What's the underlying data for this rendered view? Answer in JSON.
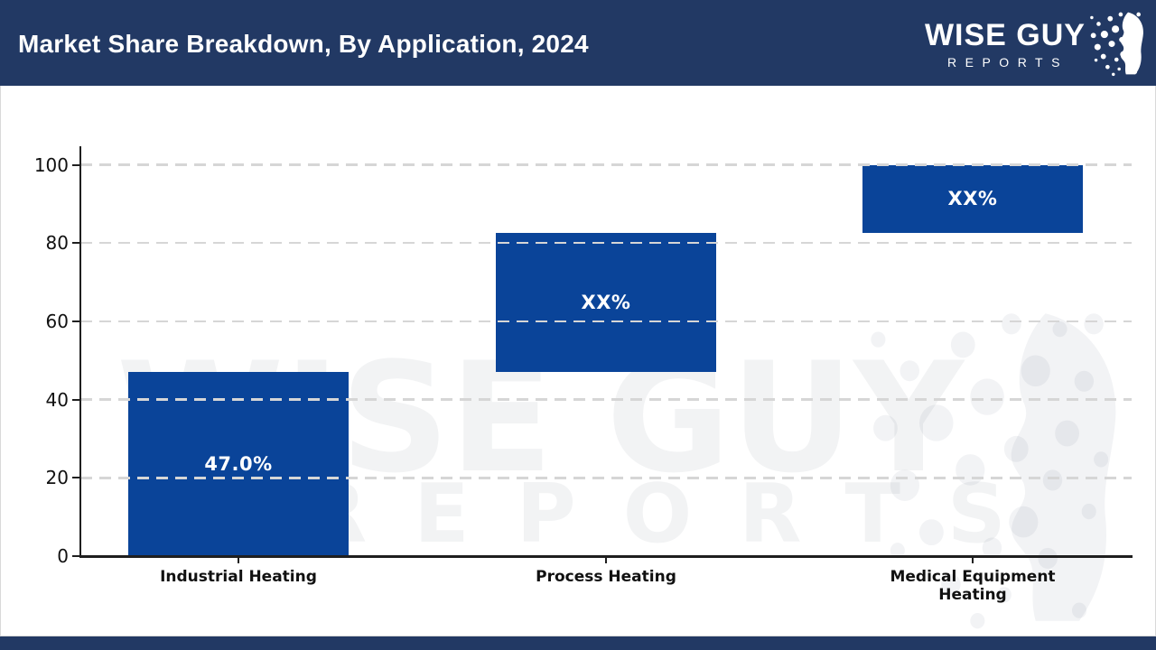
{
  "header": {
    "title": "Market Share Breakdown, By Application, 2024",
    "logo": {
      "name": "WISE GUY",
      "sub": "REPORTS"
    }
  },
  "watermark": {
    "large": "WISE GUY",
    "small": "REPORTS"
  },
  "colors": {
    "header_bg": "#223964",
    "footer_bg": "#223964",
    "bar": "#0a4499",
    "bar_label": "#ffffff",
    "gridline": "#d6d6d6",
    "axis": "#1f1f1f"
  },
  "chart_data": {
    "type": "bar",
    "subtype": "waterfall-floating-bars",
    "title": "Market Share Breakdown, By Application, 2024",
    "categories": [
      "Industrial Heating",
      "Process Heating",
      "Medical Equipment Heating"
    ],
    "bars": [
      {
        "category": "Industrial Heating",
        "start": 0,
        "end": 47,
        "value_label": "47.0%"
      },
      {
        "category": "Process Heating",
        "start": 47,
        "end": 82.5,
        "value_label": "XX%"
      },
      {
        "category": "Medical Equipment Heating",
        "start": 82.5,
        "end": 100,
        "value_label": "XX%"
      }
    ],
    "yticks": [
      0,
      20,
      40,
      60,
      80,
      100
    ],
    "ylim": [
      0,
      104.7
    ],
    "xlabel": "",
    "ylabel": "",
    "grid": "dashed-horizontal-gray",
    "legend": "none",
    "bar_color": "#0a4499",
    "value_label_color": "#ffffff"
  }
}
